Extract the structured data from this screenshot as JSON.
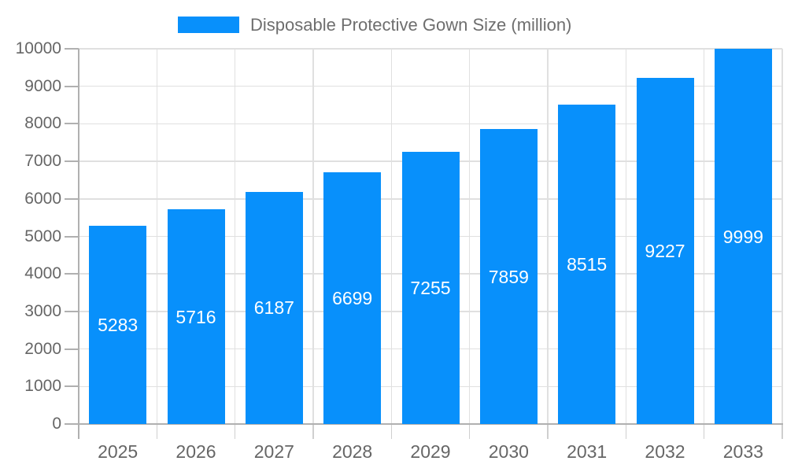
{
  "chart_data": {
    "type": "bar",
    "title": "Disposable Protective Gown Size (million)",
    "categories": [
      "2025",
      "2026",
      "2027",
      "2028",
      "2029",
      "2030",
      "2031",
      "2032",
      "2033"
    ],
    "values": [
      5283,
      5716,
      6187,
      6699,
      7255,
      7859,
      8515,
      9227,
      9999
    ],
    "series_name": "Disposable Protective Gown Size (million)",
    "xlabel": "",
    "ylabel": "",
    "ylim": [
      0,
      10000
    ],
    "yticks": [
      0,
      1000,
      2000,
      3000,
      4000,
      5000,
      6000,
      7000,
      8000,
      9000,
      10000
    ],
    "grid": true,
    "legend_position": "top",
    "colors": {
      "bar": "#0890fb",
      "bar_value_label": "#ffffff",
      "grid_line": "#e0e0e0",
      "axis_line": "#b0b0b0",
      "axis_tick": "#cfcfcf",
      "axis_tick_label": "#666666",
      "legend_text": "#6e6e6e"
    }
  }
}
